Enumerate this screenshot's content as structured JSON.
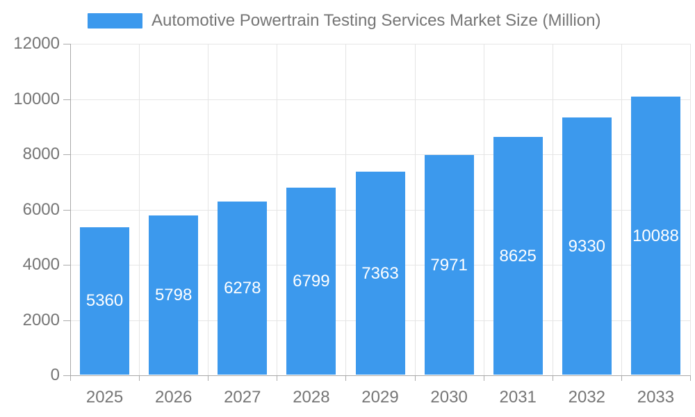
{
  "chart_data": {
    "type": "bar",
    "title": "Automotive Powertrain Testing Services Market Size (Million)",
    "legend_position": "top",
    "categories": [
      "2025",
      "2026",
      "2027",
      "2028",
      "2029",
      "2030",
      "2031",
      "2032",
      "2033"
    ],
    "series": [
      {
        "name": "Automotive Powertrain Testing Services Market Size (Million)",
        "values": [
          5360,
          5798,
          6278,
          6799,
          7363,
          7971,
          8625,
          9330,
          10088
        ]
      }
    ],
    "xlabel": "",
    "ylabel": "",
    "ylim": [
      0,
      12000
    ],
    "yticks": [
      0,
      2000,
      4000,
      6000,
      8000,
      10000,
      12000
    ],
    "grid": true,
    "value_labels": "inside-center",
    "colors": {
      "bar": "#3C99ED",
      "value_label_text": "#ffffff",
      "axis_text": "#757575",
      "title_text": "#757575",
      "axis_line": "#a8a8a8",
      "grid_line": "#e6e6e6",
      "background": "#ffffff"
    }
  }
}
